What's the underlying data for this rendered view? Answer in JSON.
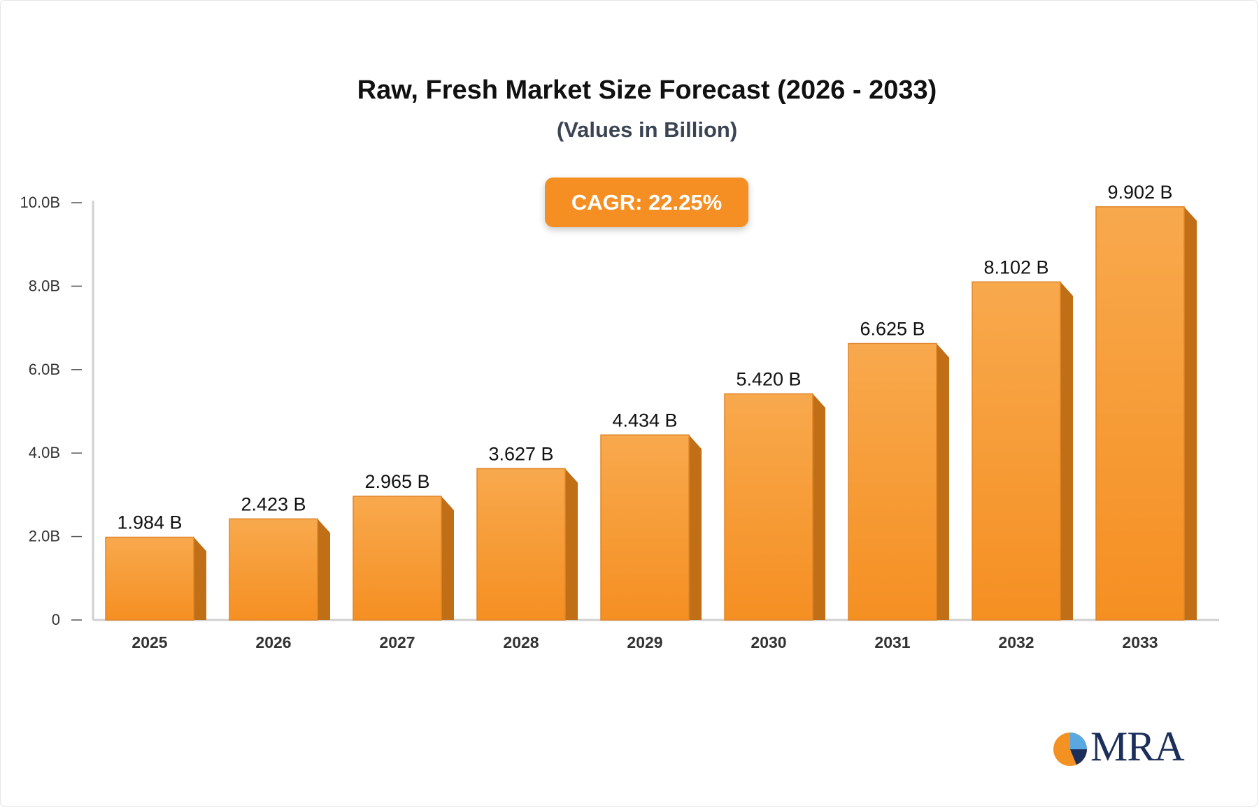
{
  "chart_data": {
    "type": "bar",
    "title": "Raw, Fresh Market Size Forecast (2026 - 2033)",
    "subtitle": "(Values in Billion)",
    "annotation": "CAGR: 22.25%",
    "categories": [
      "2025",
      "2026",
      "2027",
      "2028",
      "2029",
      "2030",
      "2031",
      "2032",
      "2033"
    ],
    "values": [
      1.984,
      2.423,
      2.965,
      3.627,
      4.434,
      5.42,
      6.625,
      8.102,
      9.902
    ],
    "value_labels": [
      "1.984 B",
      "2.423 B",
      "2.965 B",
      "3.627 B",
      "4.434 B",
      "5.420 B",
      "6.625 B",
      "8.102 B",
      "9.902 B"
    ],
    "yticks": [
      0,
      2,
      4,
      6,
      8,
      10
    ],
    "ytick_labels": [
      "0",
      "2.0B",
      "4.0B",
      "6.0B",
      "8.0B",
      "10.0B"
    ],
    "ylim": [
      0,
      10
    ],
    "xlabel": "",
    "ylabel": "",
    "grid": false,
    "colors": {
      "bar_front": "#f7a445",
      "bar_bottom": "#f58f22",
      "bar_side": "#c06f16",
      "badge": "#f58f24"
    }
  },
  "brand": {
    "logo_text": "MRA"
  }
}
